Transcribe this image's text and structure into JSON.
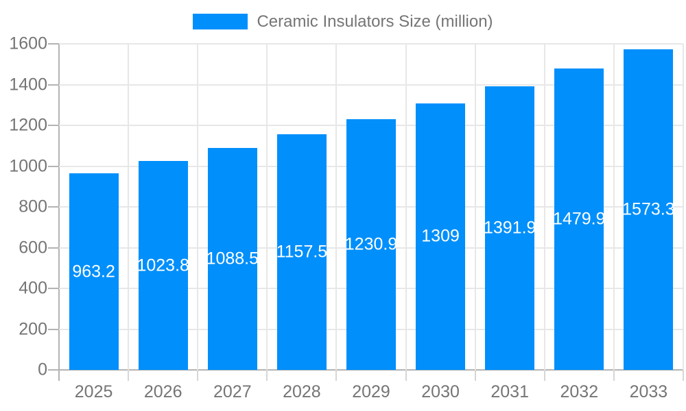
{
  "chart_data": {
    "type": "bar",
    "title": "Ceramic Insulators Size (million)",
    "categories": [
      "2025",
      "2026",
      "2027",
      "2028",
      "2029",
      "2030",
      "2031",
      "2032",
      "2033"
    ],
    "values": [
      963.2,
      1023.8,
      1088.5,
      1157.5,
      1230.9,
      1309,
      1391.9,
      1479.9,
      1573.3
    ],
    "value_labels": [
      "963.2",
      "1023.8",
      "1088.5",
      "1157.5",
      "1230.9",
      "1309",
      "1391.9",
      "1479.9",
      "1573.3"
    ],
    "xlabel": "",
    "ylabel": "",
    "ylim": [
      0,
      1600
    ],
    "ytick_step": 200,
    "yticks": [
      0,
      200,
      400,
      600,
      800,
      1000,
      1200,
      1400,
      1600
    ],
    "ytick_labels": [
      "0",
      "200",
      "400",
      "600",
      "800",
      "1000",
      "1200",
      "1400",
      "1600"
    ],
    "grid": true,
    "legend_position": "top",
    "value_label_position": "inside-center",
    "colors": {
      "bar": "#008FFB",
      "value_text": "#ffffff",
      "axis_text": "#757575",
      "gridline": "#e7e7e7",
      "axis_line": "#b3b3b3",
      "tick": "#d6d6d6",
      "background": "#ffffff"
    }
  }
}
